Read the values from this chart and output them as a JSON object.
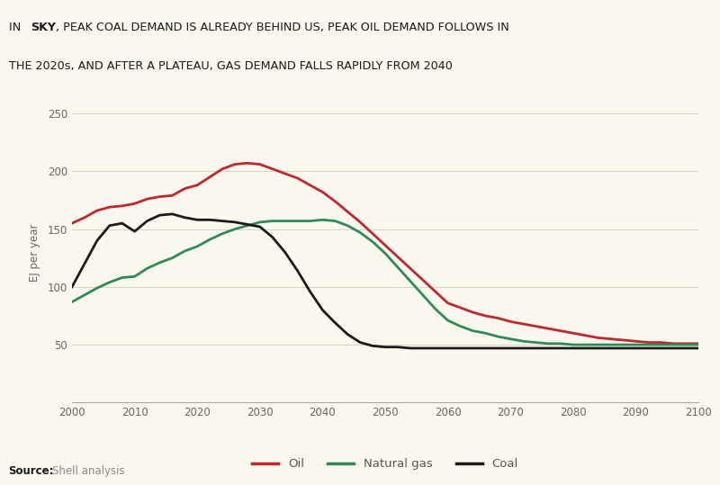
{
  "title_yellow_bg": "#f5d800",
  "background_color": "#faf8ee",
  "ylabel": "EJ per year",
  "ylim": [
    0,
    260
  ],
  "yticks": [
    0,
    50,
    100,
    150,
    200,
    250
  ],
  "xticks": [
    2000,
    2010,
    2020,
    2030,
    2040,
    2050,
    2060,
    2070,
    2080,
    2090,
    2100
  ],
  "oil_color": "#c0272d",
  "gas_color": "#2e8b57",
  "coal_color": "#1a1a1a",
  "line_width": 2.0,
  "oil_x": [
    2000,
    2002,
    2004,
    2006,
    2008,
    2010,
    2012,
    2014,
    2016,
    2018,
    2020,
    2022,
    2024,
    2026,
    2028,
    2030,
    2032,
    2034,
    2036,
    2038,
    2040,
    2042,
    2044,
    2046,
    2048,
    2050,
    2052,
    2054,
    2056,
    2058,
    2060,
    2062,
    2064,
    2066,
    2068,
    2070,
    2072,
    2074,
    2076,
    2078,
    2080,
    2082,
    2084,
    2086,
    2088,
    2090,
    2092,
    2094,
    2096,
    2098,
    2100
  ],
  "oil_y": [
    155,
    160,
    166,
    169,
    170,
    172,
    176,
    178,
    179,
    185,
    188,
    195,
    202,
    206,
    207,
    206,
    202,
    198,
    194,
    188,
    182,
    174,
    165,
    156,
    146,
    136,
    126,
    116,
    106,
    96,
    86,
    82,
    78,
    75,
    73,
    70,
    68,
    66,
    64,
    62,
    60,
    58,
    56,
    55,
    54,
    53,
    52,
    52,
    51,
    51,
    51
  ],
  "gas_x": [
    2000,
    2002,
    2004,
    2006,
    2008,
    2010,
    2012,
    2014,
    2016,
    2018,
    2020,
    2022,
    2024,
    2026,
    2028,
    2030,
    2032,
    2034,
    2036,
    2038,
    2040,
    2042,
    2044,
    2046,
    2048,
    2050,
    2052,
    2054,
    2056,
    2058,
    2060,
    2062,
    2064,
    2066,
    2068,
    2070,
    2072,
    2074,
    2076,
    2078,
    2080,
    2082,
    2084,
    2086,
    2088,
    2090,
    2092,
    2094,
    2096,
    2098,
    2100
  ],
  "gas_y": [
    87,
    93,
    99,
    104,
    108,
    109,
    116,
    121,
    125,
    131,
    135,
    141,
    146,
    150,
    153,
    156,
    157,
    157,
    157,
    157,
    158,
    157,
    153,
    147,
    139,
    129,
    117,
    105,
    93,
    81,
    71,
    66,
    62,
    60,
    57,
    55,
    53,
    52,
    51,
    51,
    50,
    50,
    50,
    50,
    50,
    50,
    50,
    50,
    50,
    50,
    50
  ],
  "coal_x": [
    2000,
    2002,
    2004,
    2006,
    2008,
    2010,
    2012,
    2014,
    2016,
    2018,
    2020,
    2022,
    2024,
    2026,
    2028,
    2030,
    2032,
    2034,
    2036,
    2038,
    2040,
    2042,
    2044,
    2046,
    2048,
    2050,
    2052,
    2054,
    2056,
    2058,
    2060,
    2062,
    2064,
    2066,
    2068,
    2070,
    2072,
    2074,
    2076,
    2078,
    2080,
    2082,
    2084,
    2086,
    2088,
    2090,
    2092,
    2094,
    2096,
    2098,
    2100
  ],
  "coal_y": [
    100,
    120,
    140,
    153,
    155,
    148,
    157,
    162,
    163,
    160,
    158,
    158,
    157,
    156,
    154,
    152,
    143,
    130,
    114,
    96,
    80,
    69,
    59,
    52,
    49,
    48,
    48,
    47,
    47,
    47,
    47,
    47,
    47,
    47,
    47,
    47,
    47,
    47,
    47,
    47,
    47,
    47,
    47,
    47,
    47,
    47,
    47,
    47,
    47,
    47,
    47
  ]
}
